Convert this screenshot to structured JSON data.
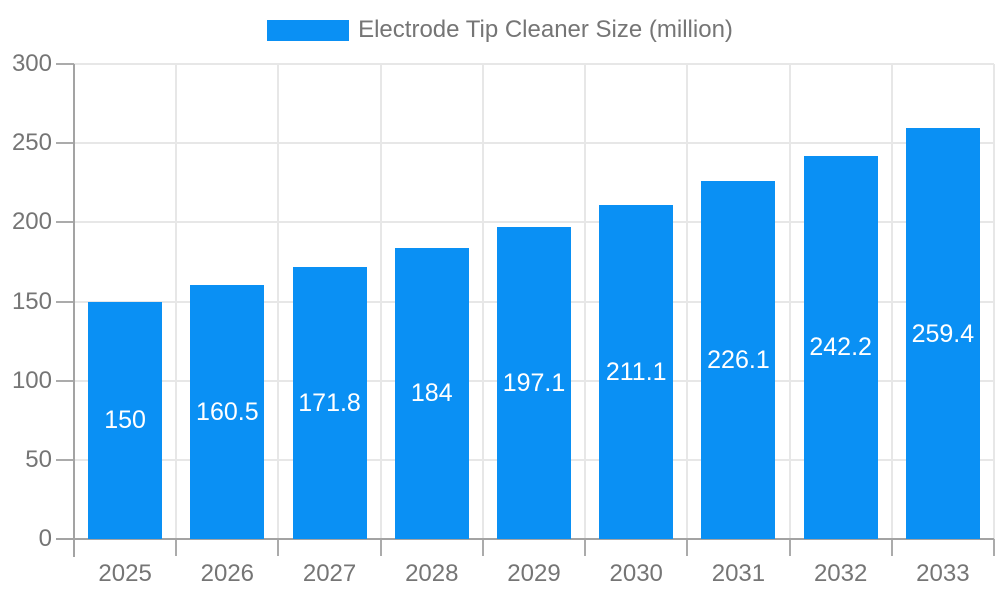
{
  "legend": {
    "label": "Electrode Tip Cleaner Size (million)",
    "swatch_color": "#0a90f4"
  },
  "chart_data": {
    "type": "bar",
    "title": "Electrode Tip Cleaner Size (million)",
    "series_name": "Electrode Tip Cleaner Size (million)",
    "categories": [
      "2025",
      "2026",
      "2027",
      "2028",
      "2029",
      "2030",
      "2031",
      "2032",
      "2033"
    ],
    "values": [
      150,
      160.5,
      171.8,
      184,
      197.1,
      211.1,
      226.1,
      242.2,
      259.4
    ],
    "value_labels": [
      "150",
      "160.5",
      "171.8",
      "184",
      "197.1",
      "211.1",
      "226.1",
      "242.2",
      "259.4"
    ],
    "xlabel": "",
    "ylabel": "",
    "ylim": [
      0,
      300
    ],
    "yticks": [
      0,
      50,
      100,
      150,
      200,
      250,
      300
    ],
    "grid": true,
    "legend_position": "top",
    "bar_color": "#0a90f4",
    "value_label_color": "#ffffff"
  },
  "colors": {
    "background": "#ffffff",
    "axis": "#a3a3a3",
    "tick": "#ababab",
    "gridline": "#e7e7e7",
    "tick_label": "#757575"
  }
}
